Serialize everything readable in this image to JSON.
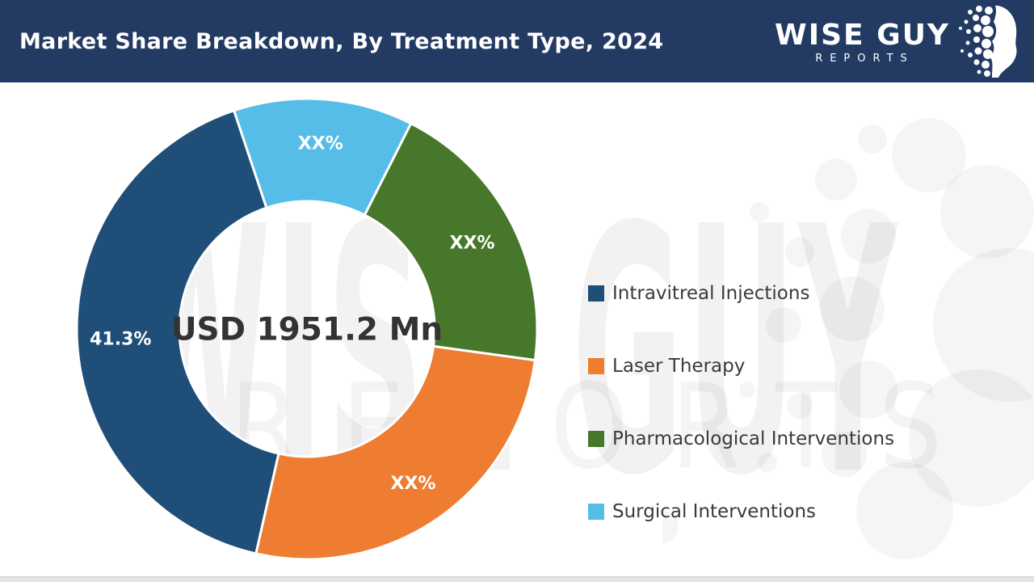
{
  "header": {
    "title": "Market Share Breakdown, By Treatment Type, 2024",
    "bg_color": "#233A63",
    "logo": {
      "primary": "WISE GUY",
      "secondary": "REPORTS"
    }
  },
  "watermark": {
    "line1": "WISE GUY",
    "line2": "REPORTS"
  },
  "chart_data": {
    "type": "pie",
    "donut": true,
    "title": "Market Share Breakdown, By Treatment Type, 2024",
    "center_label": "USD 1951.2 Mn",
    "legend_position": "right",
    "start_angle_deg": -18.5,
    "render_order": [
      3,
      2,
      1,
      0
    ],
    "segments": [
      {
        "label": "Intravitreal Injections",
        "value_pct": 41.3,
        "slice_label": "41.3%",
        "color": "#1F4E79"
      },
      {
        "label": "Laser Therapy",
        "value_pct": 26.4,
        "slice_label": "XX%",
        "color": "#EE7D31"
      },
      {
        "label": "Pharmacological Interventions",
        "value_pct": 19.7,
        "slice_label": "XX%",
        "color": "#47772A"
      },
      {
        "label": "Surgical Interventions",
        "value_pct": 12.6,
        "slice_label": "XX%",
        "color": "#56BDE8"
      }
    ]
  }
}
